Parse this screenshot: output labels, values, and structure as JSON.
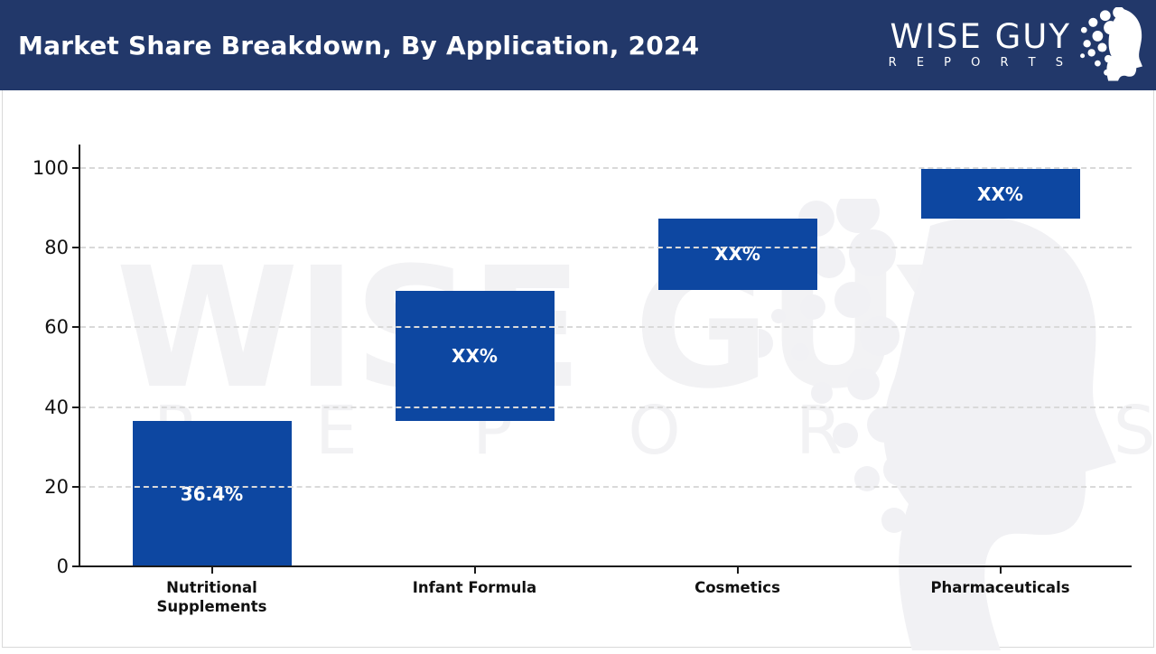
{
  "header": {
    "title": "Market Share Breakdown, By Application, 2024",
    "bg_color": "#22386a",
    "logo": {
      "brand_line1": "WISE GUY",
      "brand_line2": "R E P O R T S"
    }
  },
  "watermark": {
    "line1": "WISE GUY",
    "line2": "R E P O R T S"
  },
  "chart_data": {
    "type": "bar",
    "subtype": "floating-segment bars (waterfall-style market share breakdown)",
    "title": "Market Share Breakdown, By Application, 2024",
    "categories": [
      "Nutritional Supplements",
      "Infant Formula",
      "Cosmetics",
      "Pharmaceuticals"
    ],
    "bars": [
      {
        "category": "Nutritional Supplements",
        "start": 0,
        "end": 36.4,
        "label": "36.4%"
      },
      {
        "category": "Infant Formula",
        "start": 36.5,
        "end": 69.2,
        "label": "XX%"
      },
      {
        "category": "Cosmetics",
        "start": 69.4,
        "end": 87.4,
        "label": "XX%"
      },
      {
        "category": "Pharmaceuticals",
        "start": 87.3,
        "end": 99.7,
        "label": "XX%"
      }
    ],
    "ylim": [
      0,
      105
    ],
    "yticks": [
      0,
      20,
      40,
      60,
      80,
      100
    ],
    "xlabel": "",
    "ylabel": "",
    "grid": "horizontal dashed, drawn over bars",
    "legend": "none",
    "bar_color": "#0d47a1",
    "bar_label_color": "#ffffff",
    "axis_color": "#1a1a1a",
    "gridline_color": "#d9d9d9"
  }
}
